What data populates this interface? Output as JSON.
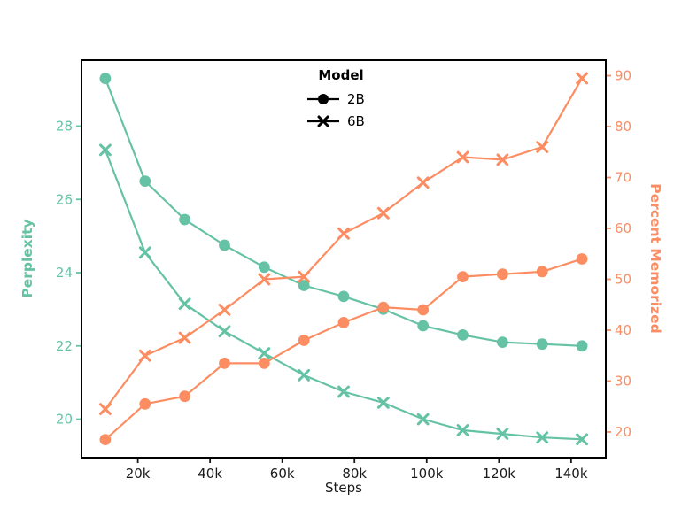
{
  "chart_data": {
    "type": "line",
    "xlabel": "Steps",
    "x": [
      11000,
      22000,
      33000,
      44000,
      55000,
      66000,
      77000,
      88000,
      99000,
      110000,
      121000,
      132000,
      143000
    ],
    "axes": {
      "x": {
        "lim": [
          4400,
          149600
        ],
        "ticks": [
          20000,
          40000,
          60000,
          80000,
          100000,
          120000,
          140000
        ],
        "tick_labels": [
          "20k",
          "40k",
          "60k",
          "80k",
          "100k",
          "120k",
          "140k"
        ]
      },
      "left": {
        "label": "Perplexity",
        "color": "#66c2a5",
        "lim": [
          18.95,
          29.8
        ],
        "ticks": [
          20,
          22,
          24,
          26,
          28
        ]
      },
      "right": {
        "label": "Percent Memorized",
        "color": "#fc8d62",
        "lim": [
          14.95,
          93.05
        ],
        "ticks": [
          20,
          30,
          40,
          50,
          60,
          70,
          80,
          90
        ]
      }
    },
    "legend": {
      "title": "Model",
      "entries": [
        {
          "label": "2B",
          "marker": "circle"
        },
        {
          "label": "6B",
          "marker": "x"
        }
      ],
      "handle_color": "#000000"
    },
    "series": [
      {
        "name": "2B",
        "metric": "Perplexity",
        "axis": "left",
        "marker": "circle",
        "color": "#66c2a5",
        "values": [
          29.3,
          26.5,
          25.45,
          24.75,
          24.15,
          23.65,
          23.35,
          23.0,
          22.55,
          22.3,
          22.1,
          22.05,
          22.0
        ]
      },
      {
        "name": "6B",
        "metric": "Perplexity",
        "axis": "left",
        "marker": "x",
        "color": "#66c2a5",
        "values": [
          27.35,
          24.55,
          23.15,
          22.4,
          21.8,
          21.2,
          20.75,
          20.45,
          20.0,
          19.7,
          19.6,
          19.5,
          19.45
        ]
      },
      {
        "name": "2B",
        "metric": "Percent Memorized",
        "axis": "right",
        "marker": "circle",
        "color": "#fc8d62",
        "values": [
          18.5,
          25.5,
          27.0,
          33.5,
          33.5,
          38.0,
          41.5,
          44.5,
          44.0,
          50.5,
          51.0,
          51.5,
          54.0
        ]
      },
      {
        "name": "6B",
        "metric": "Percent Memorized",
        "axis": "right",
        "marker": "x",
        "color": "#fc8d62",
        "values": [
          24.5,
          35.0,
          38.5,
          44.0,
          50.0,
          50.5,
          59.0,
          63.0,
          69.0,
          74.0,
          73.5,
          76.0,
          89.5
        ]
      }
    ]
  }
}
